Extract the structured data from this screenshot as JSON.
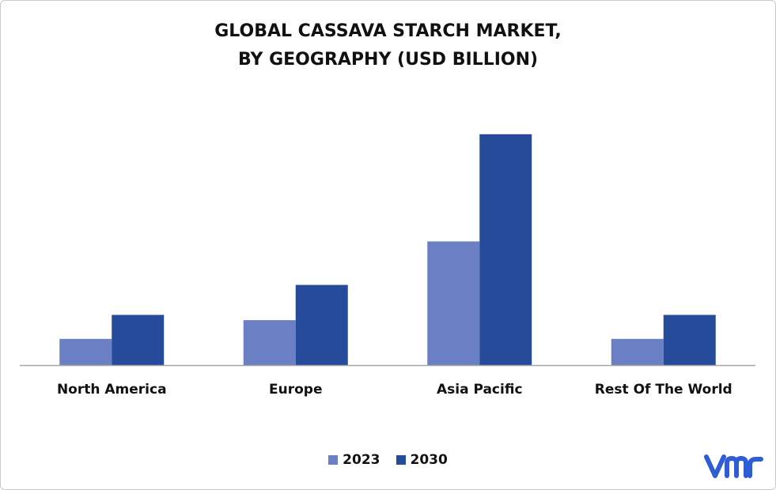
{
  "chart_data": {
    "type": "bar",
    "title": [
      "GLOBAL CASSAVA STARCH MARKET,",
      "BY GEOGRAPHY (USD BILLION)"
    ],
    "categories": [
      "North America",
      "Europe",
      "Asia Pacific",
      "Rest Of The World"
    ],
    "series": [
      {
        "name": "2023",
        "color": "#6b7fc4",
        "values": [
          0.35,
          0.6,
          1.65,
          0.35
        ]
      },
      {
        "name": "2030",
        "color": "#274b9b",
        "values": [
          0.67,
          1.07,
          3.08,
          0.67
        ]
      }
    ],
    "ylim": [
      0,
      3.5
    ],
    "grid": false,
    "legend_position": "bottom",
    "xlabel": "",
    "ylabel": ""
  },
  "brand": {
    "logo_icon": "vmr-logo-icon",
    "logo_color": "#2f5dd6"
  }
}
